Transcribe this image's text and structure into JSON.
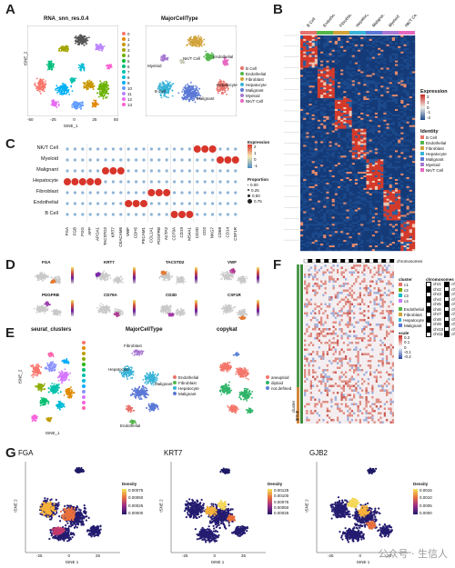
{
  "panels": {
    "A": {
      "letter": "A",
      "left_title": "RNA_snn_res.0.4",
      "right_title": "MajorCellType",
      "xlabel": "tSNE_1",
      "ylabel": "tSNE_2",
      "clusters": [
        "0",
        "1",
        "2",
        "3",
        "4",
        "5",
        "6",
        "7",
        "8",
        "9",
        "10",
        "11",
        "12",
        "13"
      ],
      "cell_types": [
        "B Cell",
        "Endothelial",
        "Fibroblast",
        "Hepatocyte",
        "Malignant",
        "Myeloid",
        "NK/T Cell"
      ],
      "map_labels": [
        "NK/T Cell",
        "Myeloid",
        "Endothelial",
        "B Cell",
        "Malignant",
        "Hepatocyte"
      ],
      "xticks": [
        "-50",
        "-25",
        "0",
        "25",
        "50"
      ],
      "yticks": [
        "25",
        "0",
        "-25"
      ]
    },
    "B": {
      "letter": "B",
      "columns": [
        "B Cell",
        "Endothelial",
        "Fibroblast",
        "Hepatocyte",
        "Malignant",
        "Myeloid",
        "NK/T Cell"
      ],
      "expression_title": "Expression",
      "expression_ticks": [
        "2",
        "1",
        "0",
        "-1",
        "-2"
      ],
      "identity_title": "Identity",
      "identity_items": [
        "B Cell",
        "Endothelial",
        "Fibroblast",
        "Hepatocyte",
        "Malignant",
        "Myeloid",
        "NK/T Cell"
      ]
    },
    "C": {
      "letter": "C",
      "rows": [
        "NK/T Cell",
        "Myeloid",
        "Malignant",
        "Hepatocyte",
        "Fibroblast",
        "Endothelial",
        "B Cell"
      ],
      "genes": [
        "FGA",
        "FGB",
        "FGG",
        "AFP",
        "APOA1",
        "TACSTD2",
        "KRT7",
        "CEACAM6",
        "VWF",
        "CDH5",
        "PECAM1",
        "COL1A1",
        "PDGFRB",
        "ACTA2",
        "CD79A",
        "CD19",
        "MS4A1",
        "CD3D",
        "CD2",
        "NKG7",
        "CD68",
        "CD14",
        "CSF1R"
      ],
      "expression_title": "Expression",
      "expression_ticks": [
        "2",
        "1",
        "0",
        "-1"
      ],
      "proportion_title": "Proportion",
      "proportion_ticks": [
        "0.00",
        "0.25",
        "0.50",
        "0.75"
      ]
    },
    "D": {
      "letter": "D",
      "genes": [
        "FGA",
        "KRT7",
        "TACSTD2",
        "VWF",
        "PDGFRB",
        "CD79A",
        "CD3D",
        "CSF1R"
      ],
      "xlabel": "tSNE_1",
      "ylabel": "tSNE_2"
    },
    "E": {
      "letter": "E",
      "titles": [
        "seurat_clusters",
        "MajorCellType",
        "copykat"
      ],
      "xlabel": "tSNE_1",
      "ylabel": "tSNE_2",
      "cell_types": [
        "Endothelial",
        "Fibroblast",
        "Hepatocyte",
        "Malignant"
      ],
      "copykat": [
        "aneuploid",
        "diploid",
        "not.defined"
      ],
      "map_labels": [
        "Fibroblast",
        "Hepatocyte",
        "Malignant",
        "Endothelial"
      ]
    },
    "F": {
      "letter": "F",
      "top_label": "chromosomes",
      "side_labels": [
        "cluster",
        "group"
      ],
      "cluster_title": "cluster",
      "cluster_items": [
        "c1",
        "c2",
        "c3",
        "c4"
      ],
      "celltype_items": [
        "Endothelial",
        "Fibroblast",
        "Hepatocyte",
        "Malignant"
      ],
      "scale_title": "scale",
      "scale_ticks": [
        "0.2",
        "0.1",
        "0",
        "-0.1",
        "-0.2"
      ],
      "chrom_title": "chromosomes",
      "chrom_col1": [
        "chr1",
        "chr2",
        "chr3",
        "chr4",
        "chr5",
        "chr6",
        "chr7",
        "chr8",
        "chr9",
        "chr10",
        "chr11"
      ],
      "chrom_col2": [
        "chr12",
        "chr13",
        "chr14",
        "chr15",
        "chr16",
        "chr17",
        "chr18",
        "chr19",
        "chr20",
        "chr21",
        "chr22"
      ]
    },
    "G": {
      "letter": "G",
      "genes": [
        "FGA",
        "KRT7",
        "GJB2"
      ],
      "xlabel": "tSNE 1",
      "ylabel": "tSNE 2",
      "density_title": "Density",
      "ticks": [
        [
          "0.00075",
          "0.00050",
          "0.00025",
          "0.00000"
        ],
        [
          "0.00125",
          "0.00100",
          "0.00075",
          "0.00050",
          "0.00025"
        ],
        [
          "0.0015",
          "0.0010",
          "0.0005",
          "0.0000"
        ]
      ],
      "xticks": [
        "-25",
        "0",
        "25"
      ]
    }
  },
  "colors": {
    "bcell": "#e8736c",
    "endo": "#53b74c",
    "fibro": "#d1a33a",
    "hepa": "#3bb4d8",
    "malig": "#5a78d6",
    "myeloid": "#a879d2",
    "nkt": "#e767c0"
  },
  "watermark": "公众号 · 生信人"
}
